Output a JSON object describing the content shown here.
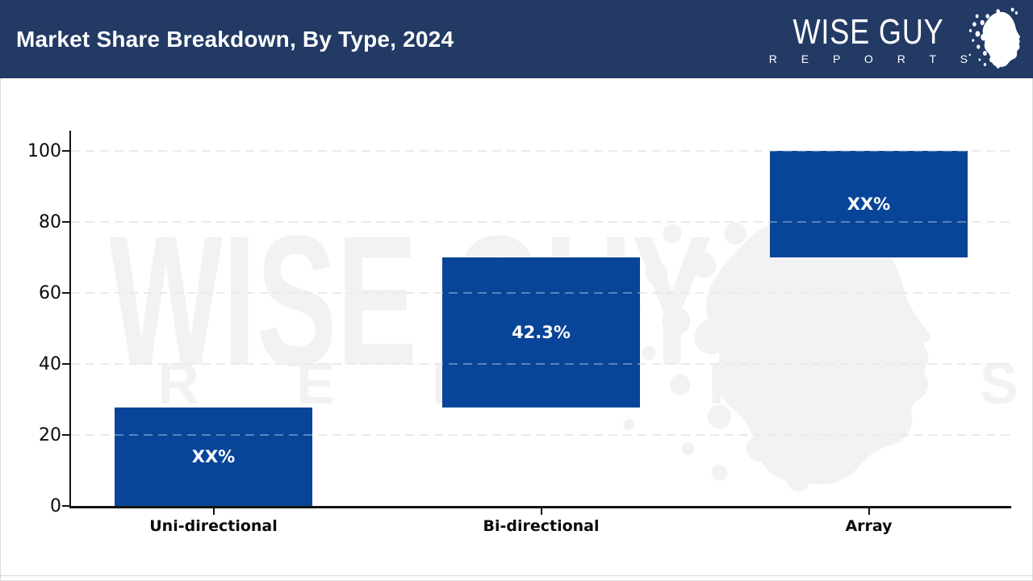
{
  "header": {
    "title": "Market Share Breakdown, By Type, 2024",
    "logo": {
      "line1": "WISE GUY",
      "line2": "R E P O R T S"
    }
  },
  "watermark": {
    "line1": "WISE GUY",
    "line2": "R E P O R T S"
  },
  "chart_data": {
    "type": "bar",
    "subtype": "floating-segment-breakdown",
    "title": "Market Share Breakdown, By Type, 2024",
    "categories": [
      "Uni-directional",
      "Bi-directional",
      "Array"
    ],
    "segments": [
      {
        "category": "Uni-directional",
        "start": 0,
        "end": 27.7,
        "label": "XX%"
      },
      {
        "category": "Bi-directional",
        "start": 27.7,
        "end": 70,
        "label": "42.3%"
      },
      {
        "category": "Array",
        "start": 70,
        "end": 100,
        "label": "XX%"
      }
    ],
    "ylim": [
      0,
      100
    ],
    "yticks": [
      0,
      20,
      40,
      60,
      80,
      100
    ],
    "grid": "horizontal-dashed",
    "legend": "none",
    "bar_color": "#084598",
    "bar_label_color": "#ffffff"
  },
  "colors": {
    "header_bg": "#223A64",
    "bar": "#084598",
    "grid": "#e0e0e0",
    "axis": "#141414",
    "watermark": "#f2f2f4",
    "title_text": "#ffffff"
  }
}
